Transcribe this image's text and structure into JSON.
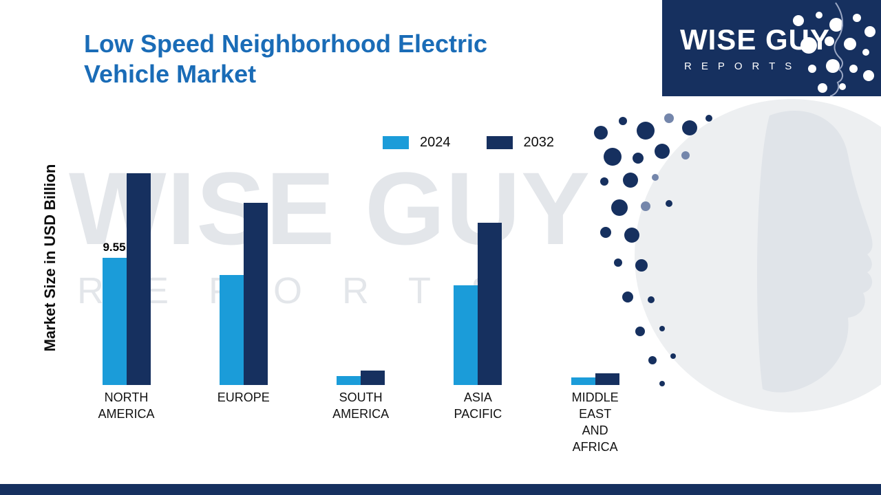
{
  "title_line1": "Low Speed Neighborhood Electric",
  "title_line2": "Vehicle Market",
  "logo": {
    "name": "WISE GUY",
    "reports": "REPORTS"
  },
  "watermark": {
    "line1": "WISE GUY",
    "line2": "REPORTS"
  },
  "footer_color": "#16305f",
  "chart_data": {
    "type": "bar",
    "title": "Low Speed Neighborhood Electric Vehicle Market",
    "ylabel": "Market Size in USD Billion",
    "unit": "USD Billion",
    "categories": [
      "NORTH AMERICA",
      "EUROPE",
      "SOUTH AMERICA",
      "ASIA PACIFIC",
      "MIDDLE EAST AND AFRICA"
    ],
    "series": [
      {
        "name": "2024",
        "color": "#1b9cd9",
        "values": [
          9.55,
          8.25,
          0.68,
          7.5,
          0.55
        ]
      },
      {
        "name": "2032",
        "color": "#16305f",
        "values": [
          15.9,
          13.7,
          1.1,
          12.2,
          0.9
        ]
      }
    ],
    "ylim": [
      0,
      16
    ],
    "grid": false,
    "legend_position": "top",
    "annotation": {
      "series_index": 0,
      "category_index": 0,
      "text": "9.55"
    }
  }
}
